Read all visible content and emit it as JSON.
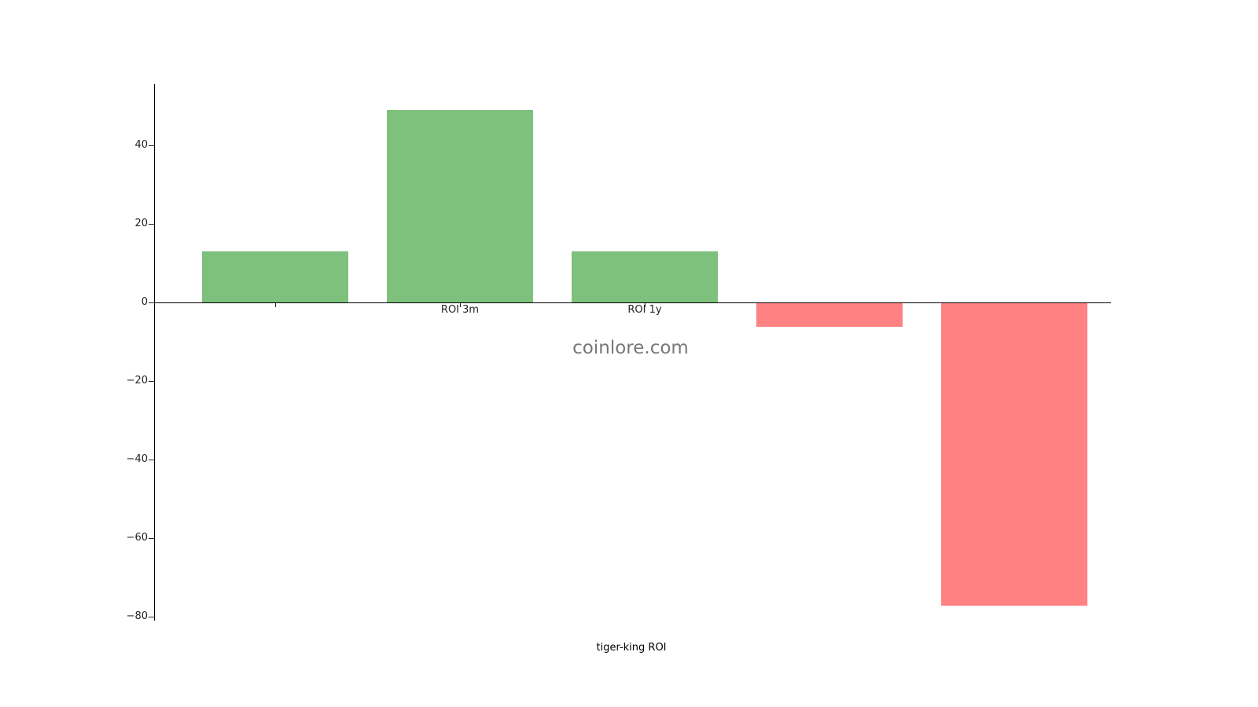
{
  "page": {
    "background": "#ffffff"
  },
  "watermark": {
    "text": "coinlore.com",
    "color": "#777777"
  },
  "chart_data": {
    "type": "bar",
    "title": "tiger-king ROI",
    "categories": [
      "",
      "ROI 3m",
      "ROI 1y",
      "",
      ""
    ],
    "values": [
      13,
      49,
      13,
      -6,
      -77
    ],
    "bar_colors": [
      "#7dc17d",
      "#7dc17d",
      "#7dc17d",
      "#ff8181",
      "#ff8181"
    ],
    "positive_color": "#7dc17d",
    "negative_color": "#ff8181",
    "yticks": [
      40,
      20,
      0,
      -20,
      -40,
      -60,
      -80
    ],
    "ytick_labels": [
      "40",
      "20",
      "0",
      "−20",
      "−40",
      "−60",
      "−80"
    ],
    "ylim": [
      -81,
      56
    ],
    "xlabel": "",
    "ylabel": "",
    "grid": false,
    "legend": false,
    "axis_color": "#000000",
    "tick_label_color": "#262626"
  }
}
